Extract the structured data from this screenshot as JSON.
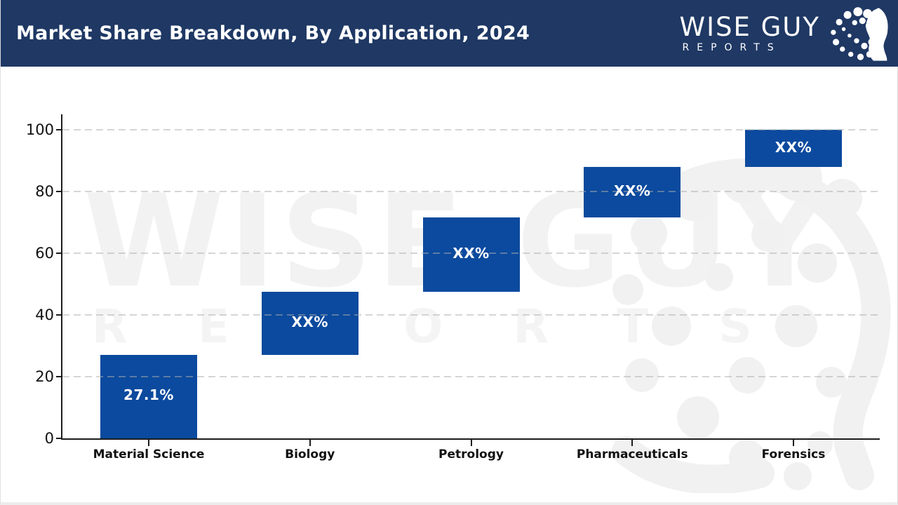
{
  "header": {
    "title": "Market Share Breakdown, By Application, 2024",
    "logo": {
      "name": "WISE GUY",
      "sub": "REPORTS"
    }
  },
  "watermark": {
    "line1": "WISE GUY",
    "line2": "REPORTS"
  },
  "colors": {
    "header_bg": "#1f3864",
    "bar": "#0b4a9e",
    "axis": "#1c1c1c",
    "grid_dash": "#dcdcdc",
    "bar_label_text": "#ffffff",
    "watermark": "#f2f2f2"
  },
  "chart_data": {
    "type": "bar",
    "subtype": "waterfall-floating-bars",
    "title": "Market Share Breakdown, By Application, 2024",
    "xlabel": "",
    "ylabel": "",
    "categories": [
      "Material Science",
      "Biology",
      "Petrology",
      "Pharmaceuticals",
      "Forensics"
    ],
    "segments": [
      {
        "category": "Material Science",
        "start": 0,
        "end": 27.1,
        "label": "27.1%"
      },
      {
        "category": "Biology",
        "start": 27.1,
        "end": 47.4,
        "label": "XX%"
      },
      {
        "category": "Petrology",
        "start": 47.4,
        "end": 71.7,
        "label": "XX%"
      },
      {
        "category": "Pharmaceuticals",
        "start": 71.7,
        "end": 87.9,
        "label": "XX%"
      },
      {
        "category": "Forensics",
        "start": 87.9,
        "end": 100,
        "label": "XX%"
      }
    ],
    "yticks": [
      0,
      20,
      40,
      60,
      80,
      100
    ],
    "ylim": [
      0,
      105
    ],
    "grid": "dashed horizontal, drawn above bars",
    "legend": false,
    "bar_color": "#0b4a9e"
  }
}
